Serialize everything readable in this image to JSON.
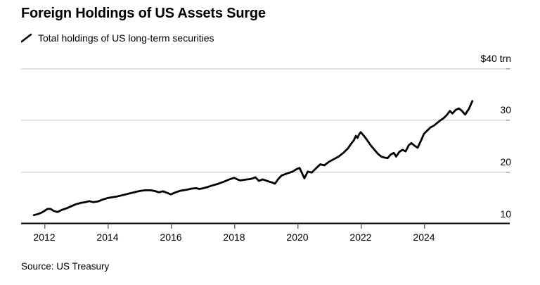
{
  "header": {
    "title": "Foreign Holdings of US Assets Surge",
    "legend_label": "Total holdings of US long-term securities"
  },
  "source_label": "Source: US Treasury",
  "colors": {
    "series_line": "#000000",
    "gridline": "#d8d8d8",
    "gridline_end_stub": "#9a9a9a",
    "axis_line": "#000000",
    "tick": "#6f6f6f",
    "text": "#000000",
    "background": "#ffffff"
  },
  "chart_data": {
    "type": "line",
    "title": "Foreign Holdings of US Assets Surge",
    "subtitle_legend": "Total holdings of US long-term securities",
    "unit": "trillions of US dollars",
    "xlabel": "",
    "ylabel": "$ trn",
    "grid": "horizontal",
    "legend_position": "top-left",
    "xlim": [
      2011.27,
      2026.7
    ],
    "ylim": [
      10,
      40
    ],
    "x_ticks": [
      2012,
      2014,
      2016,
      2018,
      2020,
      2022,
      2024
    ],
    "y_labels": [
      {
        "value": 10,
        "label": "10"
      },
      {
        "value": 20,
        "label": "20"
      },
      {
        "value": 30,
        "label": "30"
      },
      {
        "value": 40,
        "label": "$40 trn"
      }
    ],
    "series": [
      {
        "name": "Total holdings of US long-term securities",
        "color": "#000000",
        "points": [
          [
            2011.67,
            11.6
          ],
          [
            2011.8,
            11.8
          ],
          [
            2011.92,
            12.1
          ],
          [
            2012.0,
            12.4
          ],
          [
            2012.1,
            12.8
          ],
          [
            2012.2,
            12.8
          ],
          [
            2012.3,
            12.4
          ],
          [
            2012.42,
            12.2
          ],
          [
            2012.55,
            12.6
          ],
          [
            2012.7,
            12.9
          ],
          [
            2012.85,
            13.3
          ],
          [
            2013.0,
            13.7
          ],
          [
            2013.15,
            13.95
          ],
          [
            2013.3,
            14.1
          ],
          [
            2013.42,
            14.3
          ],
          [
            2013.55,
            14.1
          ],
          [
            2013.7,
            14.25
          ],
          [
            2013.85,
            14.6
          ],
          [
            2014.0,
            14.9
          ],
          [
            2014.15,
            15.05
          ],
          [
            2014.3,
            15.2
          ],
          [
            2014.5,
            15.5
          ],
          [
            2014.7,
            15.8
          ],
          [
            2014.9,
            16.1
          ],
          [
            2015.05,
            16.3
          ],
          [
            2015.2,
            16.4
          ],
          [
            2015.35,
            16.4
          ],
          [
            2015.5,
            16.25
          ],
          [
            2015.62,
            16.0
          ],
          [
            2015.75,
            16.2
          ],
          [
            2015.88,
            15.9
          ],
          [
            2016.0,
            15.6
          ],
          [
            2016.15,
            16.0
          ],
          [
            2016.3,
            16.3
          ],
          [
            2016.5,
            16.5
          ],
          [
            2016.65,
            16.7
          ],
          [
            2016.8,
            16.8
          ],
          [
            2016.9,
            16.65
          ],
          [
            2017.0,
            16.75
          ],
          [
            2017.15,
            17.0
          ],
          [
            2017.3,
            17.3
          ],
          [
            2017.5,
            17.65
          ],
          [
            2017.7,
            18.1
          ],
          [
            2017.85,
            18.5
          ],
          [
            2018.0,
            18.8
          ],
          [
            2018.1,
            18.5
          ],
          [
            2018.2,
            18.3
          ],
          [
            2018.35,
            18.45
          ],
          [
            2018.5,
            18.55
          ],
          [
            2018.6,
            18.7
          ],
          [
            2018.67,
            18.9
          ],
          [
            2018.78,
            18.2
          ],
          [
            2018.9,
            18.5
          ],
          [
            2019.0,
            18.3
          ],
          [
            2019.11,
            18.05
          ],
          [
            2019.2,
            17.9
          ],
          [
            2019.29,
            17.65
          ],
          [
            2019.4,
            18.6
          ],
          [
            2019.5,
            19.25
          ],
          [
            2019.65,
            19.6
          ],
          [
            2019.85,
            20.0
          ],
          [
            2019.98,
            20.5
          ],
          [
            2020.07,
            20.7
          ],
          [
            2020.22,
            18.7
          ],
          [
            2020.33,
            20.0
          ],
          [
            2020.45,
            19.8
          ],
          [
            2020.6,
            20.7
          ],
          [
            2020.72,
            21.4
          ],
          [
            2020.85,
            21.2
          ],
          [
            2021.0,
            21.9
          ],
          [
            2021.15,
            22.4
          ],
          [
            2021.3,
            22.9
          ],
          [
            2021.45,
            23.6
          ],
          [
            2021.6,
            24.5
          ],
          [
            2021.7,
            25.4
          ],
          [
            2021.78,
            26.0
          ],
          [
            2021.85,
            26.9
          ],
          [
            2021.9,
            26.5
          ],
          [
            2021.95,
            27.2
          ],
          [
            2022.0,
            27.6
          ],
          [
            2022.1,
            26.9
          ],
          [
            2022.2,
            26.1
          ],
          [
            2022.3,
            25.2
          ],
          [
            2022.42,
            24.3
          ],
          [
            2022.55,
            23.4
          ],
          [
            2022.65,
            22.9
          ],
          [
            2022.75,
            22.7
          ],
          [
            2022.85,
            22.6
          ],
          [
            2022.95,
            23.3
          ],
          [
            2023.05,
            23.6
          ],
          [
            2023.12,
            22.9
          ],
          [
            2023.22,
            23.8
          ],
          [
            2023.32,
            24.2
          ],
          [
            2023.42,
            23.9
          ],
          [
            2023.52,
            25.1
          ],
          [
            2023.6,
            25.5
          ],
          [
            2023.7,
            25.0
          ],
          [
            2023.8,
            24.6
          ],
          [
            2023.9,
            25.9
          ],
          [
            2024.0,
            27.3
          ],
          [
            2024.1,
            27.9
          ],
          [
            2024.2,
            28.5
          ],
          [
            2024.32,
            28.9
          ],
          [
            2024.42,
            29.4
          ],
          [
            2024.52,
            29.9
          ],
          [
            2024.62,
            30.3
          ],
          [
            2024.72,
            30.9
          ],
          [
            2024.82,
            31.7
          ],
          [
            2024.9,
            31.2
          ],
          [
            2025.0,
            31.9
          ],
          [
            2025.1,
            32.2
          ],
          [
            2025.2,
            31.7
          ],
          [
            2025.3,
            31.0
          ],
          [
            2025.42,
            32.1
          ],
          [
            2025.53,
            33.6
          ]
        ]
      }
    ]
  }
}
